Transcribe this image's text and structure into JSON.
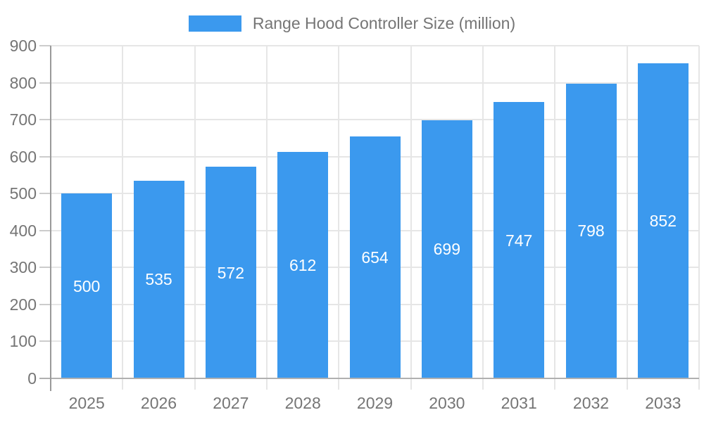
{
  "legend": {
    "label": "Range Hood Controller Size (million)",
    "swatch_color": "#3b99ee"
  },
  "chart_data": {
    "type": "bar",
    "title": "Range Hood Controller Size (million)",
    "categories": [
      "2025",
      "2026",
      "2027",
      "2028",
      "2029",
      "2030",
      "2031",
      "2032",
      "2033"
    ],
    "values": [
      500,
      535,
      572,
      612,
      654,
      699,
      747,
      798,
      852
    ],
    "xlabel": "",
    "ylabel": "",
    "ylim": [
      0,
      900
    ],
    "ytick_step": 100,
    "grid": true,
    "legend_position": "top",
    "bar_color": "#3b99ee",
    "value_label_color": "#ffffff",
    "axis_text_color": "#757575",
    "gridline_color": "#e6e6e6",
    "axis_line_color": "#9a9a9a",
    "baseline_color": "#b0b0b0",
    "tick_color": "#cccccc"
  }
}
